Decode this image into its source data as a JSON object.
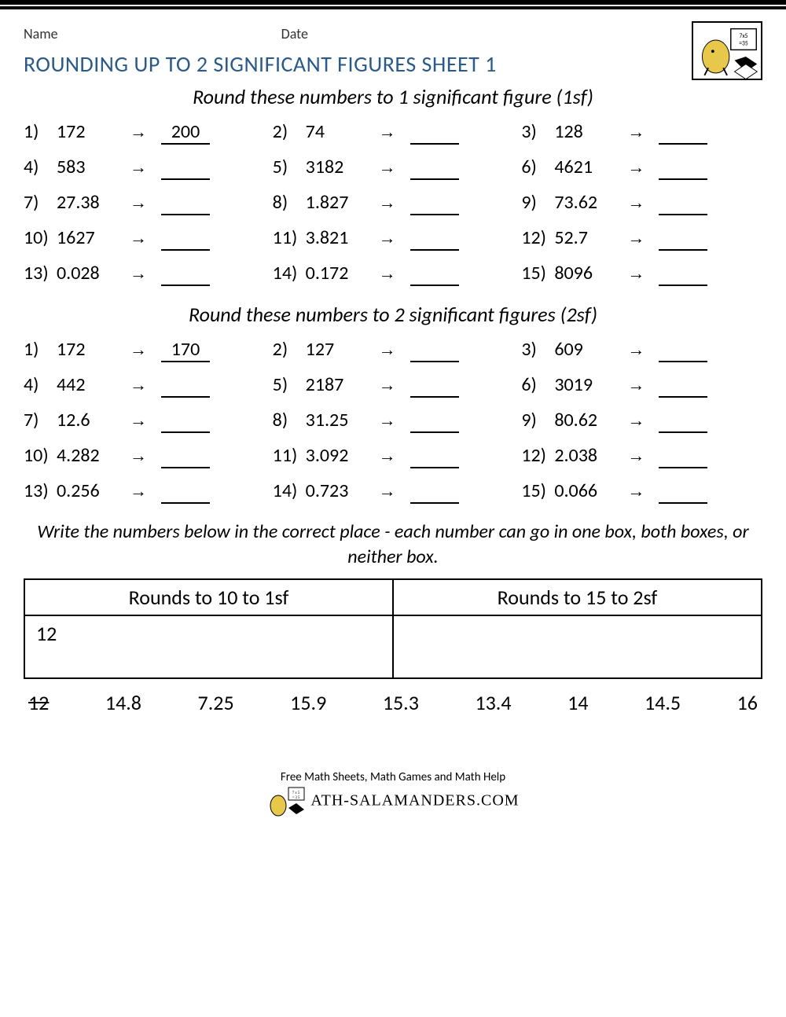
{
  "header": {
    "name_label": "Name",
    "date_label": "Date"
  },
  "title": "ROUNDING UP TO 2 SIGNIFICANT FIGURES SHEET 1",
  "section1": {
    "subtitle": "Round these numbers to 1 significant figure (1sf)",
    "items": [
      {
        "n": "1)",
        "v": "172",
        "a": "200"
      },
      {
        "n": "2)",
        "v": "74",
        "a": ""
      },
      {
        "n": "3)",
        "v": "128",
        "a": ""
      },
      {
        "n": "4)",
        "v": "583",
        "a": ""
      },
      {
        "n": "5)",
        "v": "3182",
        "a": ""
      },
      {
        "n": "6)",
        "v": "4621",
        "a": ""
      },
      {
        "n": "7)",
        "v": "27.38",
        "a": ""
      },
      {
        "n": "8)",
        "v": "1.827",
        "a": ""
      },
      {
        "n": "9)",
        "v": "73.62",
        "a": ""
      },
      {
        "n": "10)",
        "v": "1627",
        "a": ""
      },
      {
        "n": "11)",
        "v": "3.821",
        "a": ""
      },
      {
        "n": "12)",
        "v": "52.7",
        "a": ""
      },
      {
        "n": "13)",
        "v": "0.028",
        "a": ""
      },
      {
        "n": "14)",
        "v": "0.172",
        "a": ""
      },
      {
        "n": "15)",
        "v": "8096",
        "a": ""
      }
    ]
  },
  "section2": {
    "subtitle": "Round these numbers to 2 significant figures (2sf)",
    "items": [
      {
        "n": "1)",
        "v": "172",
        "a": "170"
      },
      {
        "n": "2)",
        "v": "127",
        "a": ""
      },
      {
        "n": "3)",
        "v": "609",
        "a": ""
      },
      {
        "n": "4)",
        "v": "442",
        "a": ""
      },
      {
        "n": "5)",
        "v": "2187",
        "a": ""
      },
      {
        "n": "6)",
        "v": "3019",
        "a": ""
      },
      {
        "n": "7)",
        "v": "12.6",
        "a": ""
      },
      {
        "n": "8)",
        "v": "31.25",
        "a": ""
      },
      {
        "n": "9)",
        "v": "80.62",
        "a": ""
      },
      {
        "n": "10)",
        "v": "4.282",
        "a": ""
      },
      {
        "n": "11)",
        "v": "3.092",
        "a": ""
      },
      {
        "n": "12)",
        "v": "2.038",
        "a": ""
      },
      {
        "n": "13)",
        "v": "0.256",
        "a": ""
      },
      {
        "n": "14)",
        "v": "0.723",
        "a": ""
      },
      {
        "n": "15)",
        "v": "0.066",
        "a": ""
      }
    ]
  },
  "section3": {
    "instruction": "Write the numbers below in the correct place - each number can go in one box, both boxes, or neither box.",
    "col1_header": "Rounds to 10 to 1sf",
    "col2_header": "Rounds to 15 to 2sf",
    "col1_value": "12",
    "col2_value": "",
    "numbers": [
      "12",
      "14.8",
      "7.25",
      "15.9",
      "15.3",
      "13.4",
      "14",
      "14.5",
      "16"
    ],
    "strike_index": 0
  },
  "footer": {
    "tagline": "Free Math Sheets, Math Games and Math Help",
    "brand": "ATH-SALAMANDERS.COM"
  },
  "colors": {
    "title": "#2a5a8a",
    "text": "#000000",
    "border": "#000000",
    "background": "#ffffff"
  },
  "arrow_glyph": "→"
}
